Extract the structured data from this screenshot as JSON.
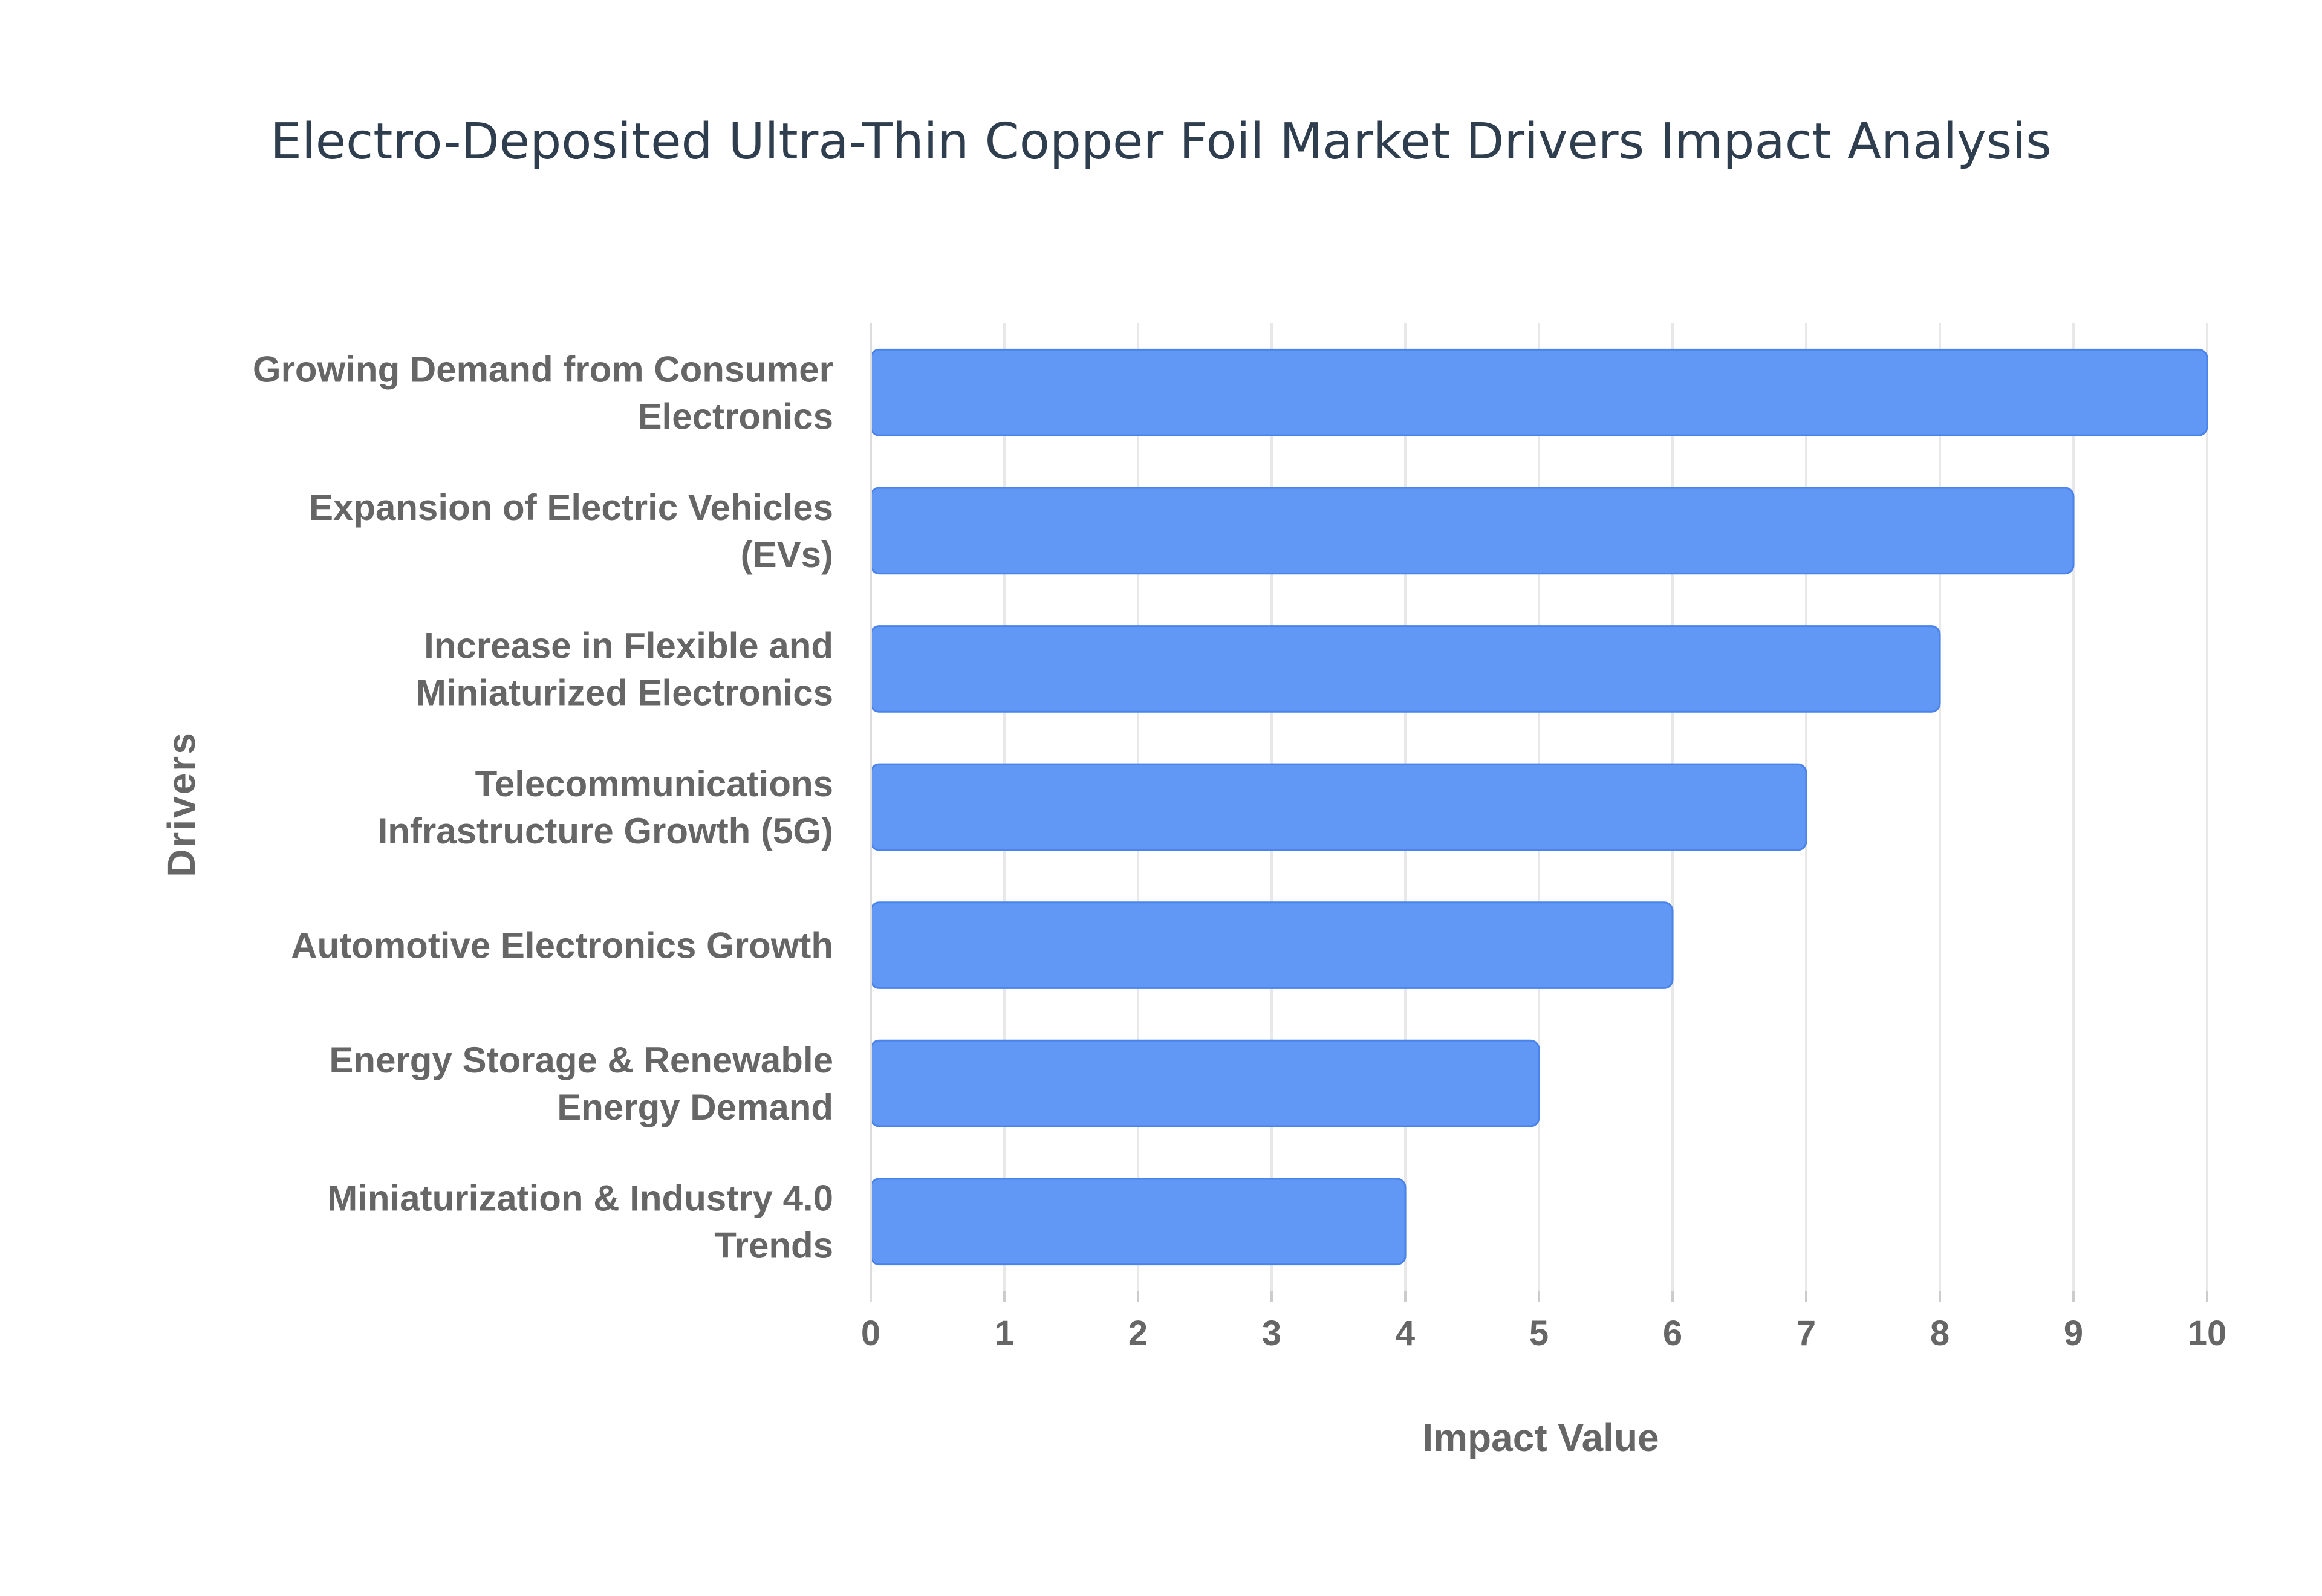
{
  "chart_data": {
    "type": "bar",
    "orientation": "horizontal",
    "title": "Electro-Deposited Ultra-Thin Copper Foil Market Drivers Impact Analysis",
    "xlabel": "Impact Value",
    "ylabel": "Drivers",
    "xlim": [
      0,
      10
    ],
    "x_ticks": [
      "0",
      "1",
      "2",
      "3",
      "4",
      "5",
      "6",
      "7",
      "8",
      "9",
      "10"
    ],
    "grid": true,
    "bar_color": "#6198f5",
    "bar_edge_color": "#4a84ea",
    "categories": [
      [
        "Growing Demand from Consumer",
        "Electronics"
      ],
      [
        "Expansion of Electric Vehicles",
        "(EVs)"
      ],
      [
        "Increase in Flexible and",
        "Miniaturized Electronics"
      ],
      [
        "Telecommunications",
        "Infrastructure Growth (5G)"
      ],
      [
        "Automotive Electronics Growth"
      ],
      [
        "Energy Storage & Renewable",
        "Energy Demand"
      ],
      [
        "Miniaturization & Industry 4.0",
        "Trends"
      ]
    ],
    "values": [
      10,
      9,
      8,
      7,
      6,
      5,
      4
    ]
  }
}
